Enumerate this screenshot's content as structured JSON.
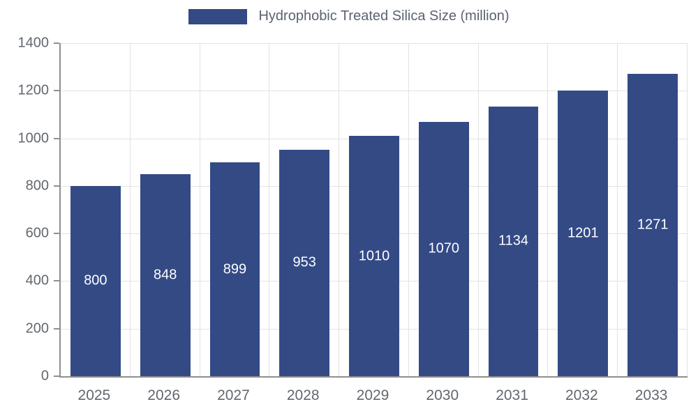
{
  "colors": {
    "bar": "#334a85",
    "grid": "#e2e2e2",
    "axis": "#8f8f8f",
    "tick_text": "#62676e",
    "legend_text": "#5b6270",
    "bar_value_text": "#ffffff",
    "background": "#ffffff"
  },
  "chart_data": {
    "type": "bar",
    "title": "",
    "legend": "Hydrophobic Treated Silica Size (million)",
    "legend_position": "top-center",
    "categories": [
      "2025",
      "2026",
      "2027",
      "2028",
      "2029",
      "2030",
      "2031",
      "2032",
      "2033"
    ],
    "values": [
      800,
      848,
      899,
      953,
      1010,
      1070,
      1134,
      1201,
      1271
    ],
    "xlabel": "",
    "ylabel": "",
    "ylim": [
      0,
      1400
    ],
    "ytick_step": 200,
    "yticks": [
      0,
      200,
      400,
      600,
      800,
      1000,
      1200,
      1400
    ],
    "grid": true,
    "value_labels": "inside-center"
  }
}
